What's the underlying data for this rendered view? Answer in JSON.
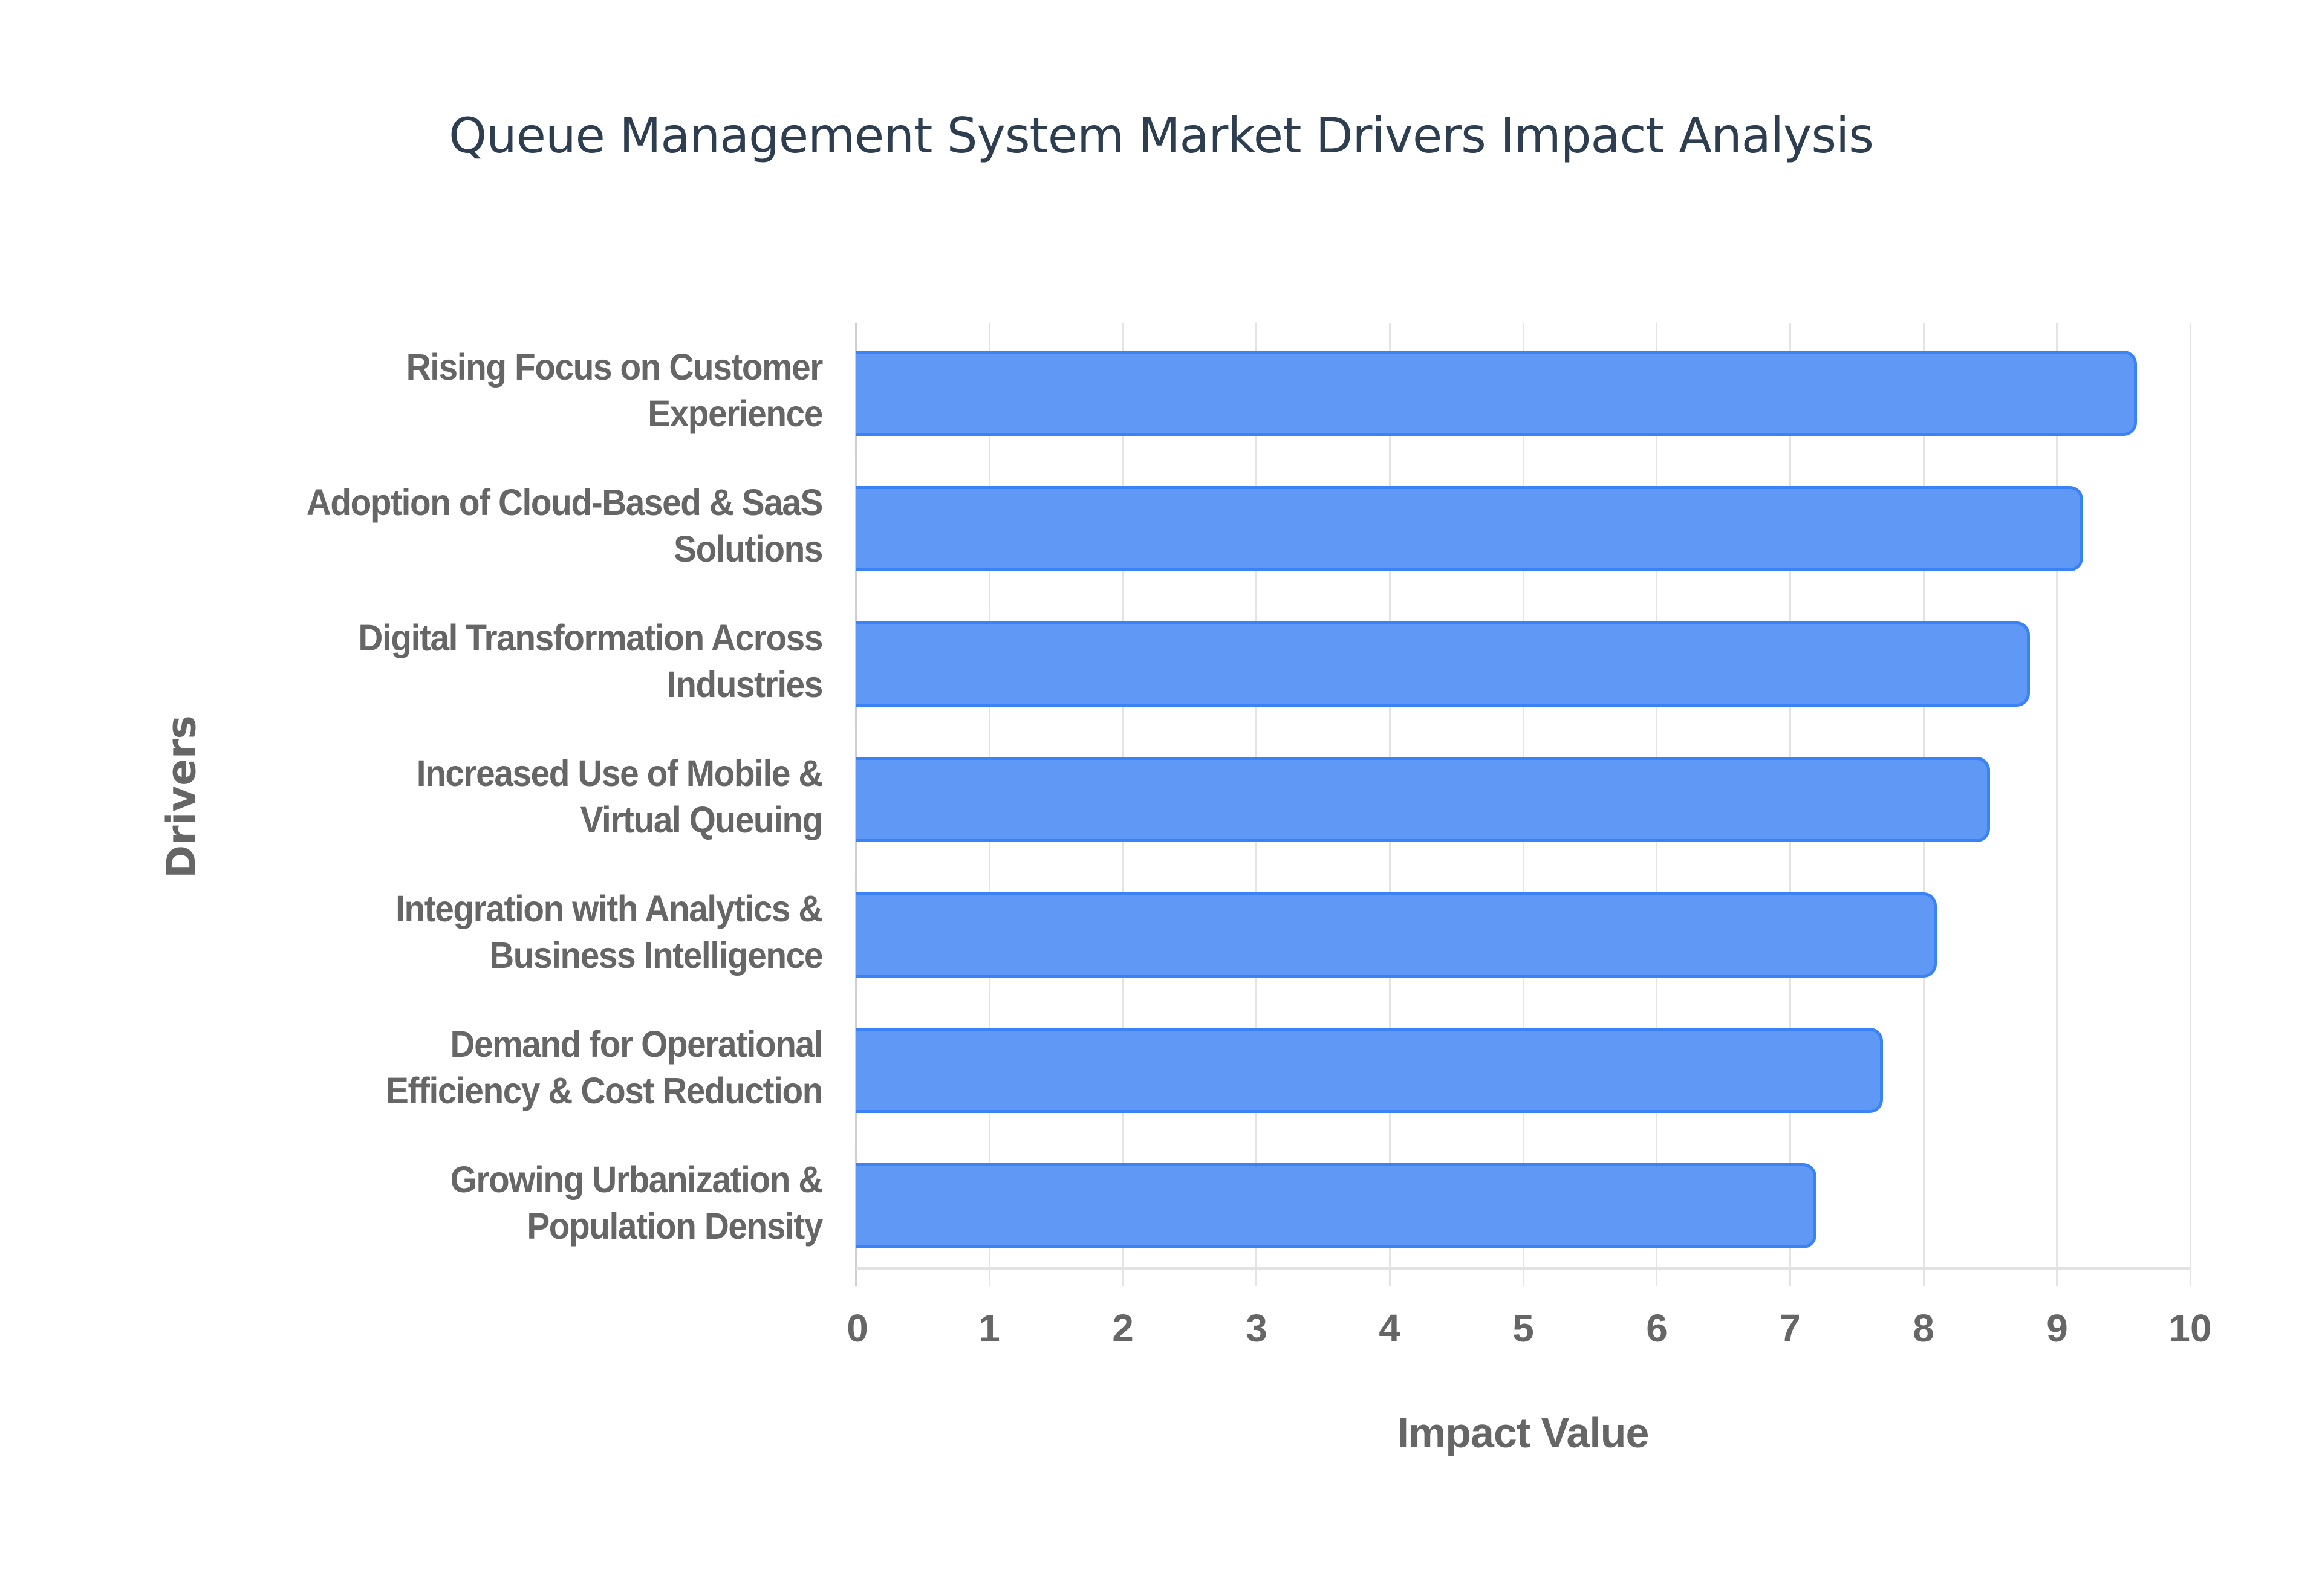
{
  "title": "Queue Management System Market Drivers Impact Analysis",
  "colors": {
    "bar_fill": "#5f99f5",
    "bar_border": "#3b82f6",
    "title": "#2c3e50",
    "axis_text": "#666666",
    "grid": "#e4e4e4"
  },
  "axes": {
    "x_title": "Impact Value",
    "y_title": "Drivers",
    "x_ticks": [
      "0",
      "1",
      "2",
      "3",
      "4",
      "5",
      "6",
      "7",
      "8",
      "9",
      "10"
    ]
  },
  "bars": [
    {
      "line1": "Rising Focus on Customer",
      "line2": "Experience",
      "value": 9.6
    },
    {
      "line1": "Adoption of Cloud-Based & SaaS",
      "line2": "Solutions",
      "value": 9.2
    },
    {
      "line1": "Digital Transformation Across",
      "line2": "Industries",
      "value": 8.8
    },
    {
      "line1": "Increased Use of Mobile &",
      "line2": "Virtual Queuing",
      "value": 8.5
    },
    {
      "line1": "Integration with Analytics &",
      "line2": "Business Intelligence",
      "value": 8.1
    },
    {
      "line1": "Demand for Operational",
      "line2": "Efficiency & Cost Reduction",
      "value": 7.7
    },
    {
      "line1": "Growing Urbanization &",
      "line2": "Population Density",
      "value": 7.2
    }
  ],
  "chart_data": {
    "type": "bar",
    "orientation": "horizontal",
    "title": "Queue Management System Market Drivers Impact Analysis",
    "xlabel": "Impact Value",
    "ylabel": "Drivers",
    "categories": [
      "Rising Focus on Customer Experience",
      "Adoption of Cloud-Based & SaaS Solutions",
      "Digital Transformation Across Industries",
      "Increased Use of Mobile & Virtual Queuing",
      "Integration with Analytics & Business Intelligence",
      "Demand for Operational Efficiency & Cost Reduction",
      "Growing Urbanization & Population Density"
    ],
    "values": [
      9.6,
      9.2,
      8.8,
      8.5,
      8.1,
      7.7,
      7.2
    ],
    "xlim": [
      0,
      10
    ],
    "x_ticks": [
      0,
      1,
      2,
      3,
      4,
      5,
      6,
      7,
      8,
      9,
      10
    ],
    "grid": {
      "vertical": true,
      "horizontal": false
    },
    "legend": null
  }
}
